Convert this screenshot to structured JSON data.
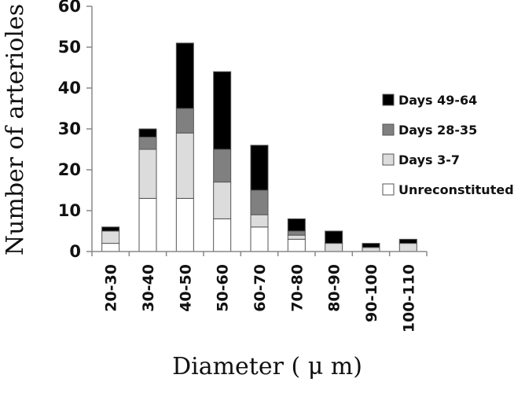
{
  "chart_data": {
    "type": "bar",
    "stacked": true,
    "categories": [
      "20-30",
      "30-40",
      "40-50",
      "50-60",
      "60-70",
      "70-80",
      "80-90",
      "90-100",
      "100-110"
    ],
    "series": [
      {
        "name": "Unreconstituted",
        "color": "#ffffff",
        "values": [
          2,
          13,
          13,
          8,
          6,
          3,
          0,
          0,
          0
        ]
      },
      {
        "name": "Days 3-7",
        "color": "#dcdcdc",
        "values": [
          3,
          12,
          16,
          9,
          3,
          1,
          2,
          1,
          2
        ]
      },
      {
        "name": "Days 28-35",
        "color": "#808080",
        "values": [
          0,
          3,
          6,
          8,
          6,
          1,
          0,
          0,
          0
        ]
      },
      {
        "name": "Days 49-64",
        "color": "#000000",
        "values": [
          1,
          2,
          16,
          19,
          11,
          3,
          3,
          1,
          1
        ]
      }
    ],
    "xlabel": "Diameter ( μ m)",
    "ylabel": "Number of arterioles",
    "ylim": [
      0,
      60
    ],
    "yticks": [
      0,
      10,
      20,
      30,
      40,
      50,
      60
    ],
    "grid": false,
    "legend_position": "right"
  }
}
